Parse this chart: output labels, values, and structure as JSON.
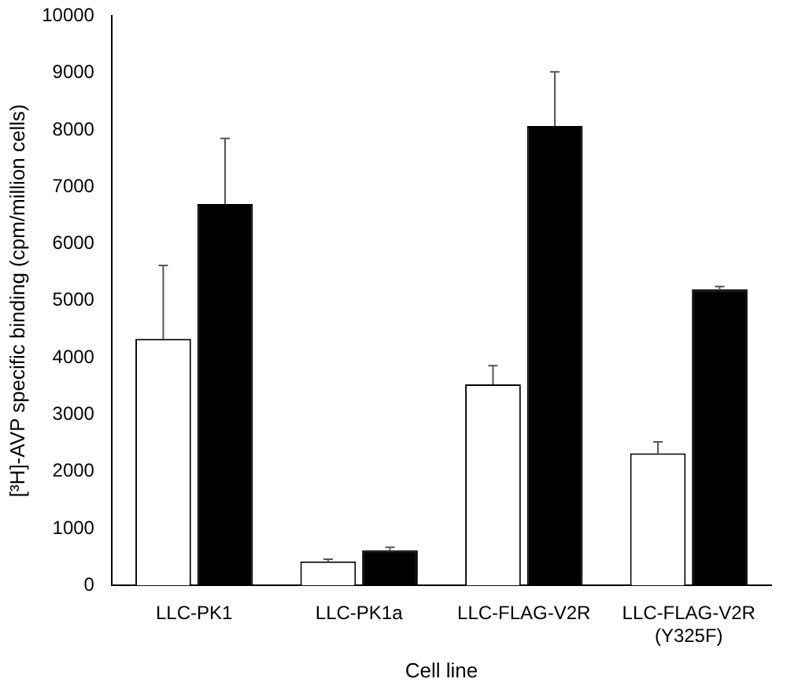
{
  "chart_data": {
    "type": "bar",
    "xlabel": "Cell line",
    "ylabel": "[³H]-AVP specific binding (cpm/million cells)",
    "categories": [
      "LLC-PK1",
      "LLC-PK1a",
      "LLC-FLAG-V2R",
      "LLC-FLAG-V2R\n(Y325F)"
    ],
    "series": [
      {
        "color": "#ffffff",
        "values": [
          4330,
          420,
          3530,
          2320
        ],
        "errors": [
          [
            4330,
            5620
          ],
          [
            420,
            460
          ],
          [
            3530,
            3860
          ],
          [
            2320,
            2520
          ]
        ]
      },
      {
        "color": "#000000",
        "values": [
          6700,
          620,
          8070,
          5200
        ],
        "errors": [
          [
            6700,
            7850
          ],
          [
            620,
            670
          ],
          [
            8070,
            9020
          ],
          [
            5200,
            5250
          ]
        ]
      }
    ],
    "ylim": [
      0,
      10000
    ],
    "yticks": [
      0,
      1000,
      2000,
      3000,
      4000,
      5000,
      6000,
      7000,
      8000,
      9000,
      10000
    ],
    "grid": false
  }
}
